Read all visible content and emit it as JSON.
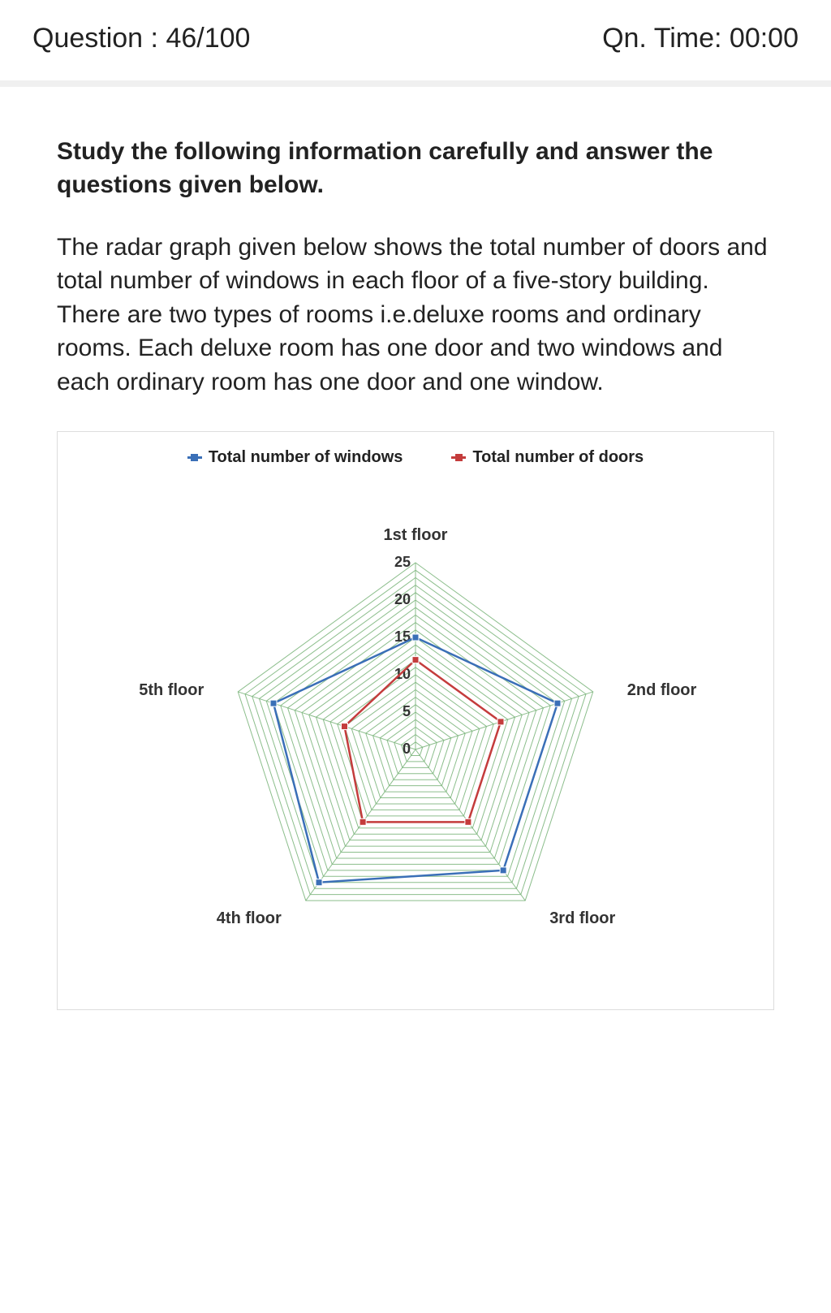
{
  "header": {
    "question_counter_label": "Question :",
    "question_counter_value": "46/100",
    "time_label": "Qn. Time:",
    "time_value": "00:00"
  },
  "instruction": "Study the following information carefully and answer the questions given below.",
  "passage": "The radar graph given below shows the total number of doors and total number of windows in each floor of a five-story building. There are two types of rooms i.e.deluxe rooms and ordinary rooms. Each deluxe room has one door and two windows and each ordinary room has one door and one window.",
  "chart": {
    "type": "radar",
    "axes": [
      "1st floor",
      "2nd floor",
      "3rd floor",
      "4th floor",
      "5th floor"
    ],
    "max": 25,
    "tick_step": 5,
    "ticks": [
      0,
      5,
      10,
      15,
      20,
      25
    ],
    "series": [
      {
        "name": "Total number of windows",
        "color": "#3a6fb7",
        "marker_fill": "#3a6fb7",
        "marker_shape": "square",
        "values": [
          15,
          20,
          20,
          22,
          20
        ]
      },
      {
        "name": "Total number of doors",
        "color": "#c43c3c",
        "marker_fill": "#c43c3c",
        "marker_shape": "square",
        "values": [
          12,
          12,
          12,
          12,
          10
        ]
      }
    ],
    "grid_color": "#7fb77f",
    "grid_line_width": 1,
    "series_line_width": 2.5,
    "marker_size": 8,
    "background_color": "#ffffff",
    "label_fontsize": 20,
    "tick_fontsize": 18,
    "legend_fontsize": 20,
    "grid_ring_count": 25
  }
}
